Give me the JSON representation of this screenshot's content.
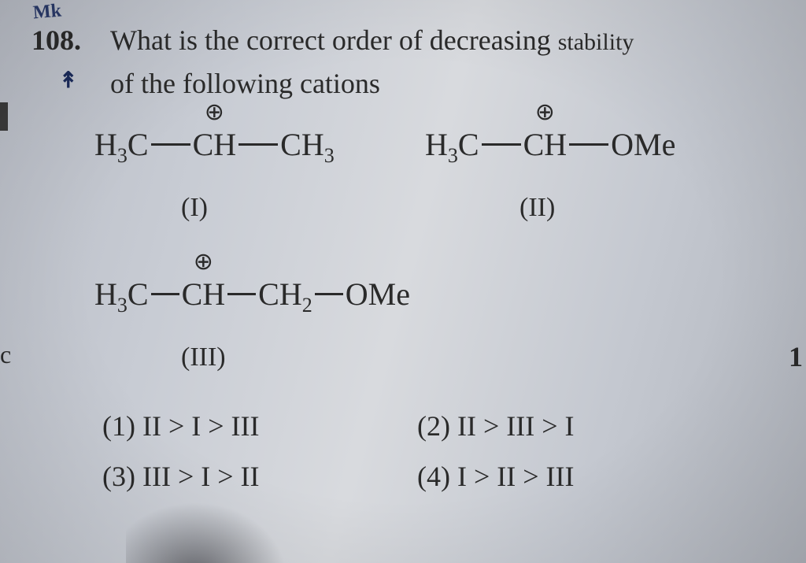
{
  "scribble": "Mk",
  "question": {
    "number": "108.",
    "line1_part1": "What is the correct order of decreasing ",
    "line1_stability": "stability",
    "line2": "of the following cations"
  },
  "structures": {
    "s1": {
      "left": "H",
      "left_sub": "3",
      "left2": "C",
      "cat": "CH",
      "right": "CH",
      "right_sub": "3",
      "plus": "⊕",
      "label": "(I)"
    },
    "s2": {
      "left": "H",
      "left_sub": "3",
      "left2": "C",
      "cat": "CH",
      "right": "OMe",
      "plus": "⊕",
      "label": "(II)"
    },
    "s3": {
      "left": "H",
      "left_sub": "3",
      "left2": "C",
      "cat": "CH",
      "mid": "CH",
      "mid_sub": "2",
      "right": "OMe",
      "plus": "⊕",
      "label": "(III)"
    }
  },
  "options": {
    "o1": "(1) II > I > III",
    "o2": "(2) II > III > I",
    "o3": "(3) III > I > II",
    "o4": "(4) I > II > III"
  },
  "side": {
    "c": "c",
    "one": "1"
  },
  "arrow": "↟"
}
